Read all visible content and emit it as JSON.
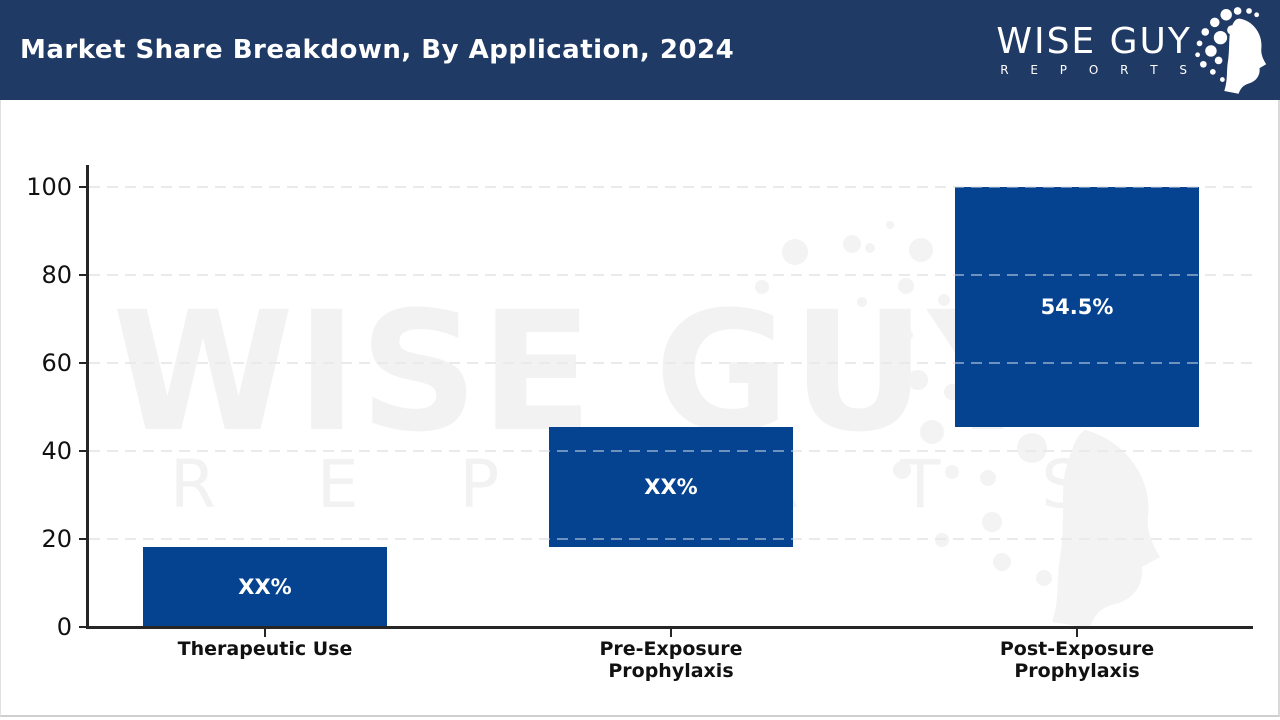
{
  "header": {
    "title": "Market Share Breakdown, By Application, 2024",
    "bg_color": "#203a66",
    "logo": {
      "wordmark": "WISE GUY",
      "subtitle": "R E P O R T S"
    }
  },
  "watermark": {
    "wordmark": "WISE GUY",
    "subtitle": "R E P O R T S"
  },
  "chart_data": {
    "type": "bar",
    "subtype": "stepped-waterfall-breakdown",
    "title": "Market Share Breakdown, By Application, 2024",
    "categories": [
      "Therapeutic Use",
      "Pre-Exposure\nProphylaxis",
      "Post-Exposure\nProphylaxis"
    ],
    "segments": [
      {
        "category": "Therapeutic Use",
        "label": "XX%",
        "start": 0,
        "end": 18.2
      },
      {
        "category": "Pre-Exposure Prophylaxis",
        "label": "XX%",
        "start": 18.2,
        "end": 45.5
      },
      {
        "category": "Post-Exposure Prophylaxis",
        "label": "54.5%",
        "start": 45.5,
        "end": 100
      }
    ],
    "xlabel": "",
    "ylabel": "",
    "ylim": [
      0,
      100
    ],
    "yticks": [
      0,
      20,
      40,
      60,
      80,
      100
    ],
    "grid": "horizontal-dashed",
    "legend": "none",
    "bar_color": "#054290",
    "axis_color": "#262626",
    "value_label_color": "#ffffff"
  }
}
